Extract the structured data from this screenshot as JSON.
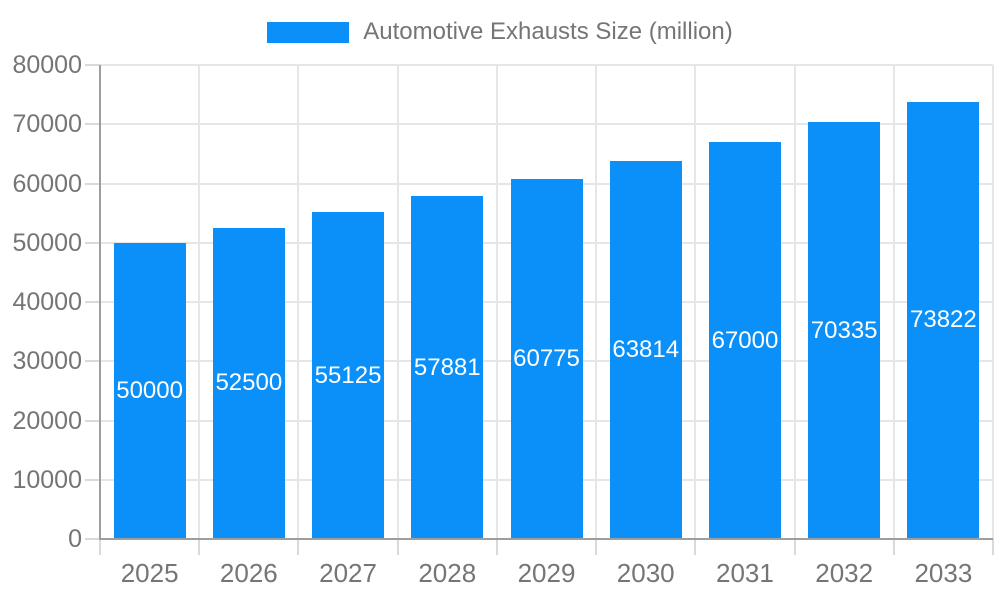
{
  "chart_data": {
    "type": "bar",
    "title": "Automotive Exhausts Size (million)",
    "categories": [
      "2025",
      "2026",
      "2027",
      "2028",
      "2029",
      "2030",
      "2031",
      "2032",
      "2033"
    ],
    "values": [
      50000,
      52500,
      55125,
      57881,
      60775,
      63814,
      67000,
      70335,
      73822
    ],
    "xlabel": "",
    "ylabel": "",
    "ylim": [
      0,
      80000
    ],
    "yticks": [
      0,
      10000,
      20000,
      30000,
      40000,
      50000,
      60000,
      70000,
      80000
    ],
    "grid": true,
    "legend_position": "top",
    "value_label_position": "inside-center"
  },
  "legend": {
    "label": "Automotive Exhausts Size (million)"
  },
  "colors": {
    "bar": "#0a90f8",
    "axis_text": "#757575",
    "gridline": "#e6e6e6",
    "axis_line": "#9e9e9e",
    "tick": "#d9d9d9",
    "value_label": "#ffffff",
    "background": "#ffffff"
  }
}
